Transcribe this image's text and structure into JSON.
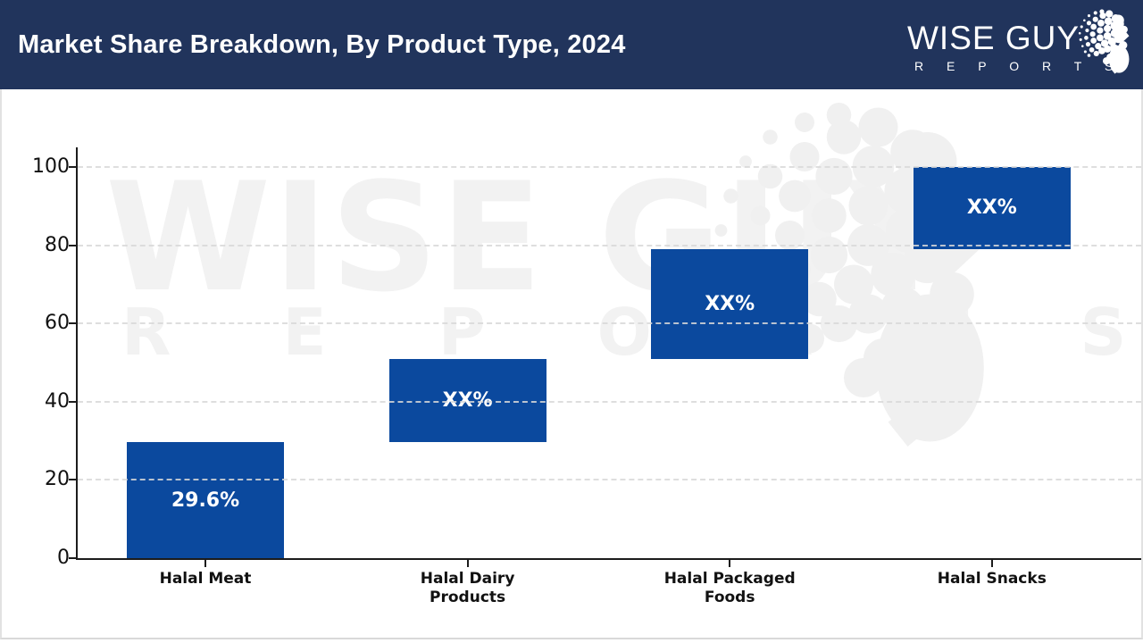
{
  "header": {
    "title": "Market Share Breakdown, By Product Type, 2024",
    "logo": {
      "name": "WISE GUY",
      "sub": "R E P O R T S"
    }
  },
  "watermark": {
    "name": "WISE GUY",
    "sub": "R E P O R T S"
  },
  "colors": {
    "header_bg": "#21345c",
    "bar": "#0b499e",
    "grid": "#d9d9d9",
    "axis": "#1c1c1c",
    "bar_label": "#ffffff",
    "watermark": "#f2f2f2"
  },
  "chart_data": {
    "type": "bar",
    "subtype": "waterfall",
    "title": "Market Share Breakdown, By Product Type, 2024",
    "categories": [
      "Halal Meat",
      "Halal Dairy Products",
      "Halal Packaged Foods",
      "Halal Snacks"
    ],
    "bars": [
      {
        "category": "Halal Meat",
        "start": 0,
        "end": 29.6,
        "label": "29.6%"
      },
      {
        "category": "Halal Dairy Products",
        "start": 29.6,
        "end": 51,
        "label": "XX%"
      },
      {
        "category": "Halal Packaged Foods",
        "start": 51,
        "end": 79,
        "label": "XX%"
      },
      {
        "category": "Halal Snacks",
        "start": 79,
        "end": 100,
        "label": "XX%"
      }
    ],
    "xlabel": "",
    "ylabel": "",
    "ylim": [
      0,
      100
    ],
    "yticks": [
      0,
      20,
      40,
      60,
      80,
      100
    ],
    "grid": "horizontal-dashed",
    "legend": false,
    "bar_color": "#0b499e"
  }
}
